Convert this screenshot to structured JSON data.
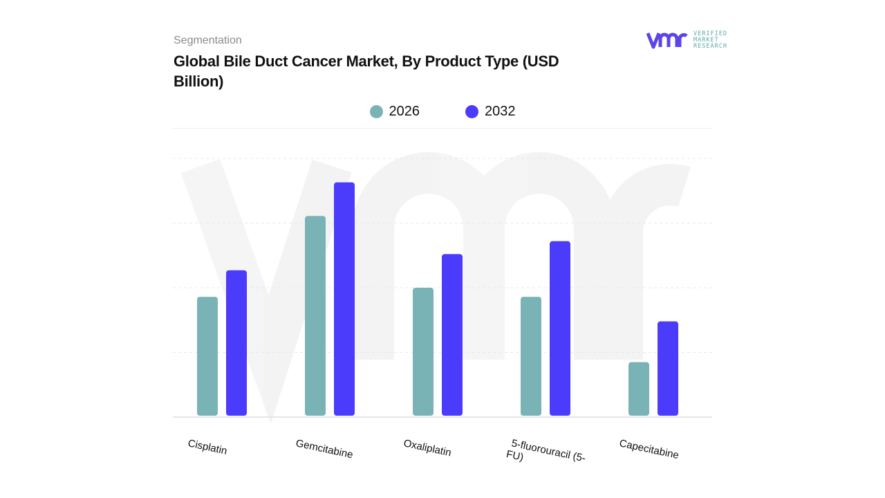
{
  "header": {
    "segment_label": "Segmentation",
    "title": "Global Bile Duct Cancer Market, By Product Type (USD Billion)"
  },
  "logo": {
    "text_lines": [
      "VERIFIED",
      "MARKET",
      "RESEARCH"
    ],
    "mark": "vmr"
  },
  "chart_data": {
    "type": "bar",
    "title": "Global Bile Duct Cancer Market, By Product Type (USD Billion)",
    "categories": [
      "Cisplatin",
      "Gemcitabine",
      "Oxaliplatin",
      "5-fluorouracil (5-FU)",
      "Capecitabine"
    ],
    "series": [
      {
        "name": "2026",
        "color": "#7ab3b5",
        "values": [
          1.86,
          3.11,
          2.0,
          1.86,
          0.85
        ]
      },
      {
        "name": "2032",
        "color": "#4b3bfa",
        "values": [
          2.27,
          3.63,
          2.52,
          2.72,
          1.48
        ]
      }
    ],
    "ylim": [
      0,
      4
    ],
    "grid": true,
    "legend_position": "top-center",
    "xlabel": "",
    "ylabel": ""
  }
}
